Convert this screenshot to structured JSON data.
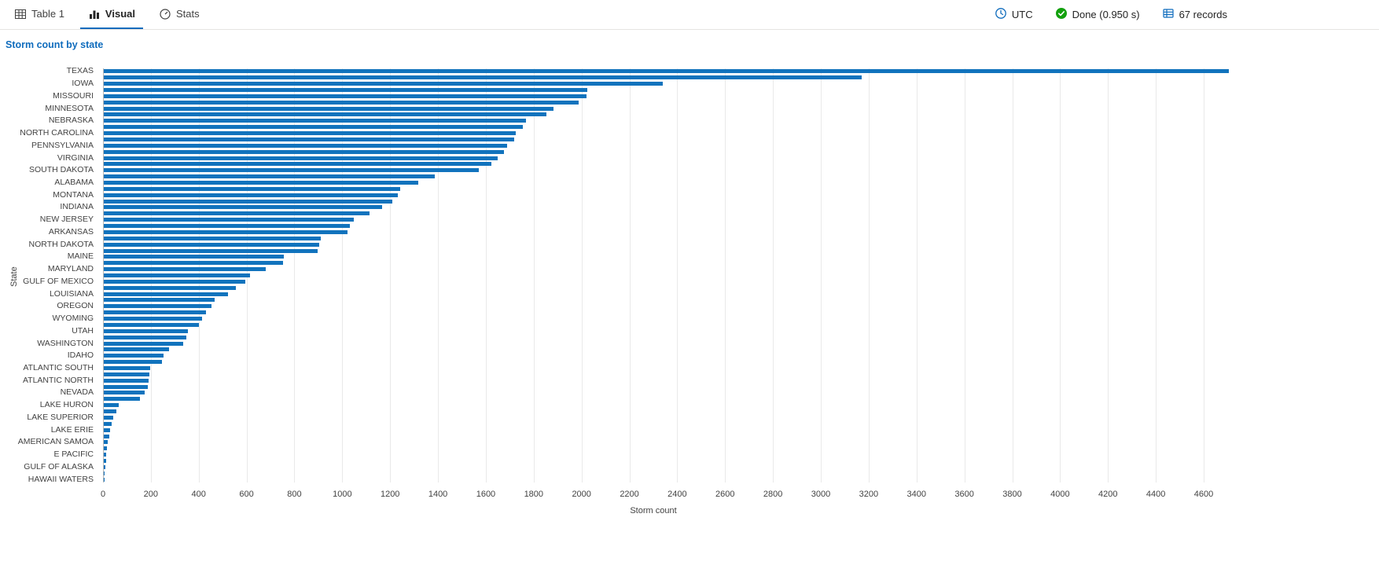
{
  "tabs": {
    "table": {
      "label": "Table 1"
    },
    "visual": {
      "label": "Visual"
    },
    "stats": {
      "label": "Stats"
    }
  },
  "status": {
    "timezone": "UTC",
    "done": "Done (0.950 s)",
    "records": "67 records"
  },
  "colors": {
    "accent": "#0f6cbd",
    "bar": "#1173bd",
    "done_green": "#13a10e",
    "grid": "#e9e9e9"
  },
  "chart_data": {
    "type": "bar",
    "orientation": "horizontal",
    "title": "Storm count by state",
    "xlabel": "Storm count",
    "ylabel": "State",
    "xlim": [
      0,
      4600
    ],
    "x_ticks": [
      0,
      200,
      400,
      600,
      800,
      1000,
      1200,
      1400,
      1600,
      1800,
      2000,
      2200,
      2400,
      2600,
      2800,
      3000,
      3200,
      3400,
      3600,
      3800,
      4000,
      4200,
      4400,
      4600
    ],
    "grid": "vertical",
    "legend": "none",
    "bar_color": "#1173bd",
    "axis_label_note": "category labels rendered for every other bar",
    "categories": [
      "TEXAS",
      "",
      "IOWA",
      "",
      "MISSOURI",
      "",
      "MINNESOTA",
      "",
      "NEBRASKA",
      "",
      "NORTH CAROLINA",
      "",
      "PENNSYLVANIA",
      "",
      "VIRGINIA",
      "",
      "SOUTH DAKOTA",
      "",
      "ALABAMA",
      "",
      "MONTANA",
      "",
      "INDIANA",
      "",
      "NEW JERSEY",
      "",
      "ARKANSAS",
      "",
      "NORTH DAKOTA",
      "",
      "MAINE",
      "",
      "MARYLAND",
      "",
      "GULF OF MEXICO",
      "",
      "LOUISIANA",
      "",
      "OREGON",
      "",
      "WYOMING",
      "",
      "UTAH",
      "",
      "WASHINGTON",
      "",
      "IDAHO",
      "",
      "ATLANTIC SOUTH",
      "",
      "ATLANTIC NORTH",
      "",
      "NEVADA",
      "",
      "LAKE HURON",
      "",
      "LAKE SUPERIOR",
      "",
      "LAKE ERIE",
      "",
      "AMERICAN SAMOA",
      "",
      "E PACIFIC",
      "",
      "GULF OF ALASKA",
      "",
      "HAWAII WATERS"
    ],
    "values": [
      4701,
      3166,
      2337,
      2022,
      2016,
      1983,
      1881,
      1850,
      1766,
      1750,
      1721,
      1716,
      1687,
      1674,
      1647,
      1620,
      1567,
      1384,
      1315,
      1240,
      1230,
      1205,
      1164,
      1110,
      1044,
      1030,
      1020,
      908,
      900,
      895,
      752,
      748,
      678,
      610,
      590,
      552,
      520,
      463,
      450,
      427,
      410,
      398,
      352,
      345,
      332,
      272,
      250,
      243,
      193,
      190,
      188,
      184,
      170,
      150,
      62,
      52,
      40,
      34,
      27,
      24,
      16,
      14,
      11,
      9,
      5,
      4,
      2
    ]
  }
}
